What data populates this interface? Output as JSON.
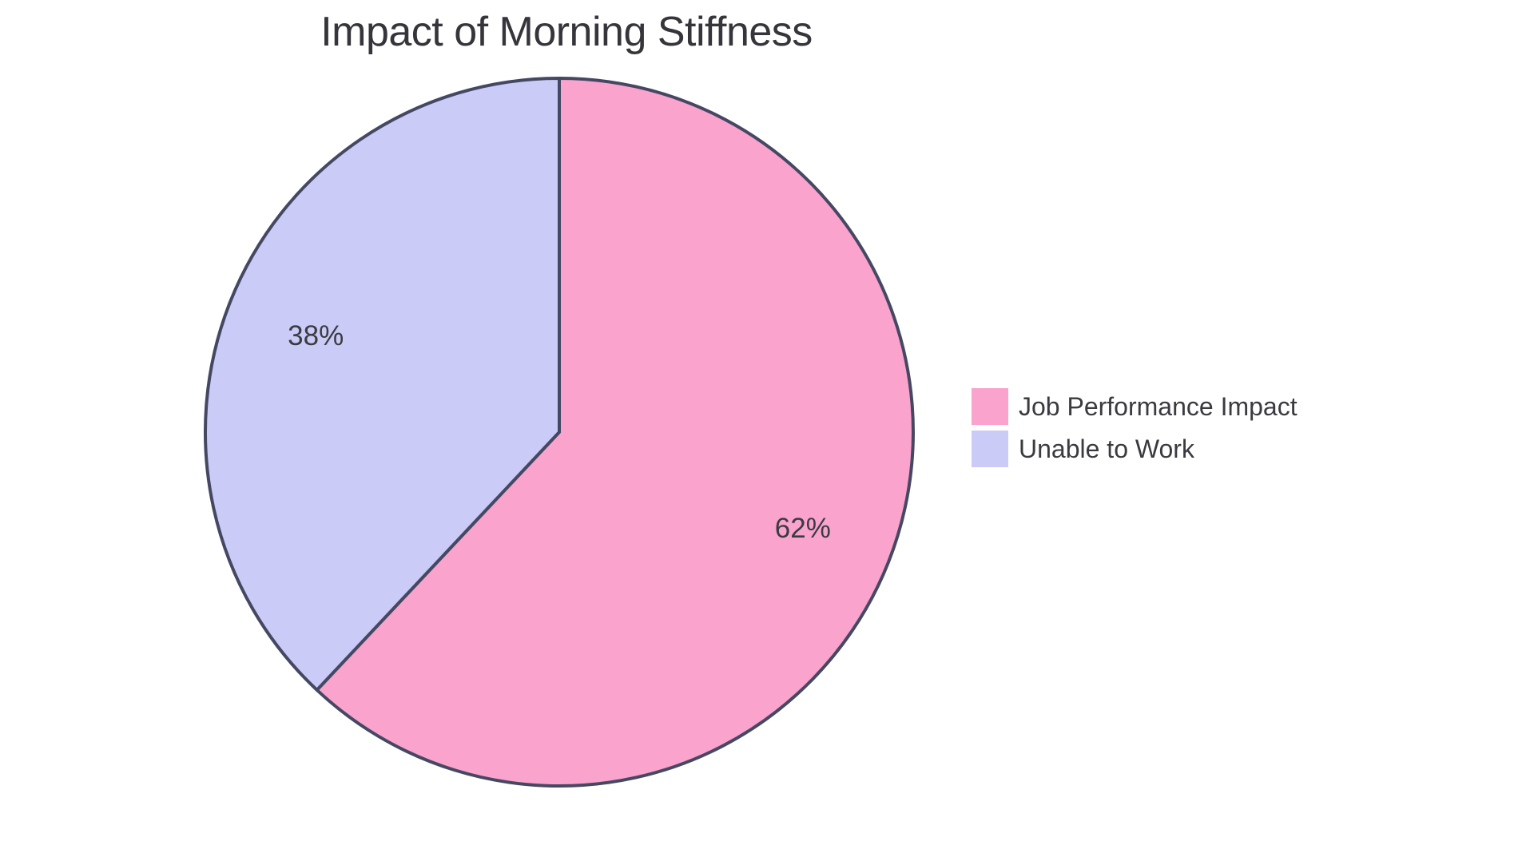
{
  "chart_data": {
    "type": "pie",
    "title": "Impact of Morning Stiffness",
    "categories": [
      "Job Performance Impact",
      "Unable to Work"
    ],
    "values": [
      62,
      38
    ],
    "slices": [
      {
        "label": "Job Performance Impact",
        "value": 62,
        "pct_label": "62%",
        "color": "#F9A3CD"
      },
      {
        "label": "Unable to Work",
        "value": 38,
        "pct_label": "38%",
        "color": "#CACBF6"
      }
    ],
    "start_angle_deg": 0,
    "direction": "clockwise",
    "legend_position": "right",
    "background": "#FFFFFF",
    "stroke_color": "#454863",
    "title_color": "#35353B",
    "percent_label_color": "#3B3B42",
    "legend_text_color": "#3A3A40"
  }
}
